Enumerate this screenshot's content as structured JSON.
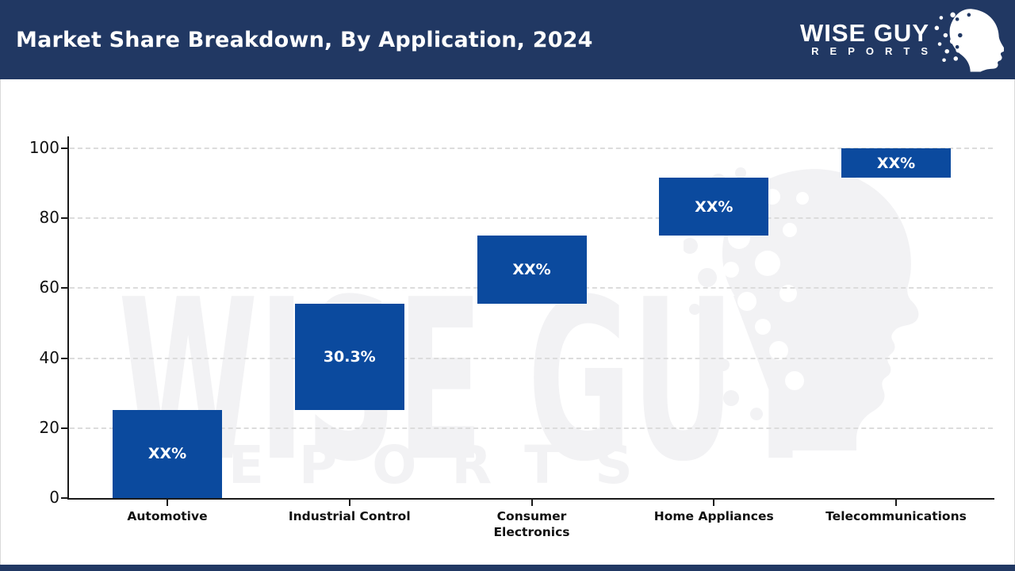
{
  "header": {
    "title": "Market Share Breakdown, By Application, 2024",
    "logo": {
      "line1": "WISE GUY",
      "line2": "REPORTS",
      "icon": "dotted-head-profile-icon"
    }
  },
  "watermark": {
    "line1": "WISE GUY",
    "line2": "REPORTS",
    "icon": "dotted-head-profile-watermark"
  },
  "colors": {
    "header_bg": "#213863",
    "footer_bg": "#213863",
    "bar": "#0b4a9e",
    "grid": "#dcdcdc",
    "axis": "#1a1a1a",
    "watermark": "#f2f2f4",
    "bar_label_text": "#ffffff"
  },
  "chart_data": {
    "type": "bar",
    "subtype": "floating-waterfall",
    "title": "Market Share Breakdown, By Application, 2024",
    "xlabel": "",
    "ylabel": "",
    "ylim": [
      0,
      103
    ],
    "yticks": [
      0,
      20,
      40,
      60,
      80,
      100
    ],
    "grid": "horizontal-dashed",
    "legend": "none",
    "categories": [
      {
        "name": "Automotive",
        "lines": [
          "Automotive"
        ]
      },
      {
        "name": "Industrial Control",
        "lines": [
          "Industrial Control"
        ]
      },
      {
        "name": "Consumer Electronics",
        "lines": [
          "Consumer",
          "Electronics"
        ]
      },
      {
        "name": "Home Appliances",
        "lines": [
          "Home Appliances"
        ]
      },
      {
        "name": "Telecommunications",
        "lines": [
          "Telecommunications"
        ]
      }
    ],
    "segments": [
      {
        "category": "Automotive",
        "start": 0,
        "end": 25.2,
        "label": "XX%"
      },
      {
        "category": "Industrial Control",
        "start": 25.2,
        "end": 55.5,
        "label": "30.3%"
      },
      {
        "category": "Consumer Electronics",
        "start": 55.5,
        "end": 75.0,
        "label": "XX%"
      },
      {
        "category": "Home Appliances",
        "start": 75.0,
        "end": 91.5,
        "label": "XX%"
      },
      {
        "category": "Telecommunications",
        "start": 91.5,
        "end": 100.0,
        "label": "XX%"
      }
    ]
  }
}
